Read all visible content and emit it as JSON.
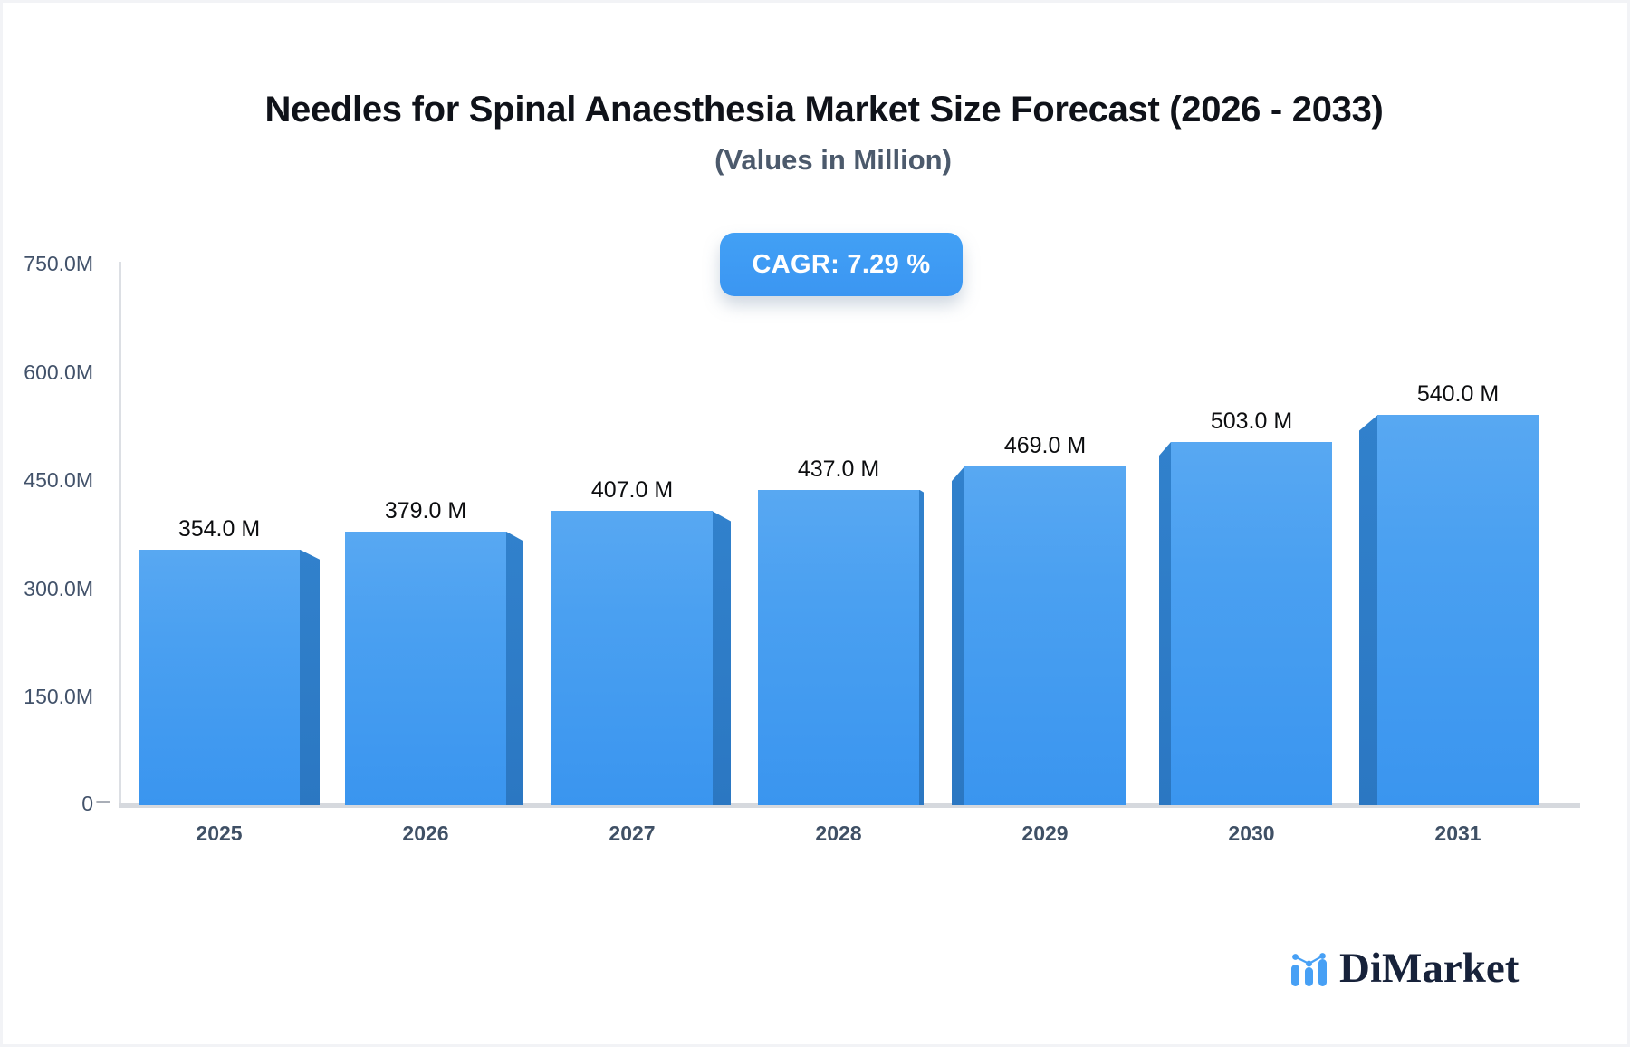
{
  "title": "Needles for Spinal Anaesthesia Market Size Forecast (2026 - 2033)",
  "subtitle": "(Values in Million)",
  "cagr": {
    "label": "CAGR: 7.29 %",
    "percent": 7.29
  },
  "brand": {
    "name": "DiMarket"
  },
  "colors": {
    "accent_blue": "#3e9bf4",
    "bar_top": "#58a8f2",
    "bar_bottom": "#3a95ef",
    "bar_side": "#2e7cc6",
    "axis_line": "#d6d9de",
    "axis_label": "#42526a",
    "value_label": "#0c0d0f",
    "title_text": "#0f1219",
    "subtitle_text": "#4c5a6c",
    "logo_text": "#17223a",
    "logo_icon": "#47a0f5"
  },
  "chart_data": {
    "type": "bar",
    "title": "Needles for Spinal Anaesthesia Market Size Forecast (2026 - 2033)",
    "subtitle": "(Values in Million)",
    "unit": "Million",
    "categories": [
      "2025",
      "2026",
      "2027",
      "2028",
      "2029",
      "2030",
      "2031"
    ],
    "values": [
      354,
      379,
      407,
      437,
      469,
      503,
      540
    ],
    "bar_labels": [
      "354.0 M",
      "379.0 M",
      "407.0 M",
      "437.0 M",
      "469.0 M",
      "503.0 M",
      "540.0 M"
    ],
    "y_ticks": [
      {
        "value": 750,
        "label": "750.0M"
      },
      {
        "value": 600,
        "label": "600.0M"
      },
      {
        "value": 450,
        "label": "450.0M"
      },
      {
        "value": 300,
        "label": "300.0M"
      },
      {
        "value": 150,
        "label": "150.0M"
      },
      {
        "value": 0,
        "label": "0"
      }
    ],
    "ylim": [
      0,
      750
    ],
    "grid": false,
    "legend": false,
    "annotation": "CAGR: 7.29 %"
  }
}
